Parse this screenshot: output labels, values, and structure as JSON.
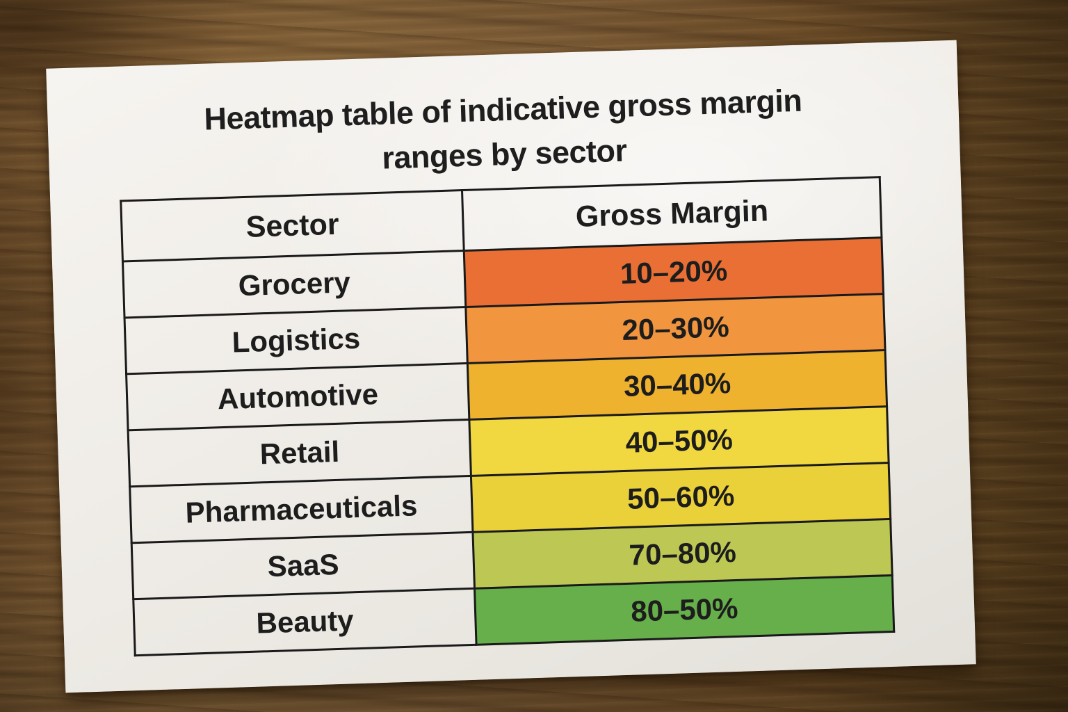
{
  "title": {
    "full": "Heatmap table of indicative gross margin ranges by sector",
    "line1": "Heatmap table of indicative gross margin",
    "line2": "ranges by sector"
  },
  "chart_data": {
    "type": "heatmap",
    "title": "Heatmap table of indicative gross margin ranges by sector",
    "columns": [
      "Sector",
      "Gross Margin"
    ],
    "rows": [
      {
        "sector": "Grocery",
        "gross_margin": "10–20%",
        "range_pct": [
          10,
          20
        ],
        "cell_color": "#E96F35"
      },
      {
        "sector": "Logistics",
        "gross_margin": "20–30%",
        "range_pct": [
          20,
          30
        ],
        "cell_color": "#F2953F"
      },
      {
        "sector": "Automotive",
        "gross_margin": "30–40%",
        "range_pct": [
          30,
          40
        ],
        "cell_color": "#EFB22F"
      },
      {
        "sector": "Retail",
        "gross_margin": "40–50%",
        "range_pct": [
          40,
          50
        ],
        "cell_color": "#F1D840"
      },
      {
        "sector": "Pharmaceuticals",
        "gross_margin": "50–60%",
        "range_pct": [
          50,
          60
        ],
        "cell_color": "#EBD139"
      },
      {
        "sector": "SaaS",
        "gross_margin": "70–80%",
        "range_pct": [
          70,
          80
        ],
        "cell_color": "#BDC854"
      },
      {
        "sector": "Beauty",
        "gross_margin": "80–50%",
        "range_pct": [
          80,
          50
        ],
        "cell_color": "#66AF4A"
      }
    ],
    "layout": {
      "legend": "none",
      "grid_border_color": "#1A1A1A",
      "sector_column_fill": "paper"
    },
    "colors": {
      "paper": "#F1EEE9",
      "border": "#1A1A1A",
      "text": "#1D1D1D",
      "wood_mid": "#7E5A31",
      "wood_dark": "#63461F",
      "wood_light": "#8D6A3E"
    }
  }
}
